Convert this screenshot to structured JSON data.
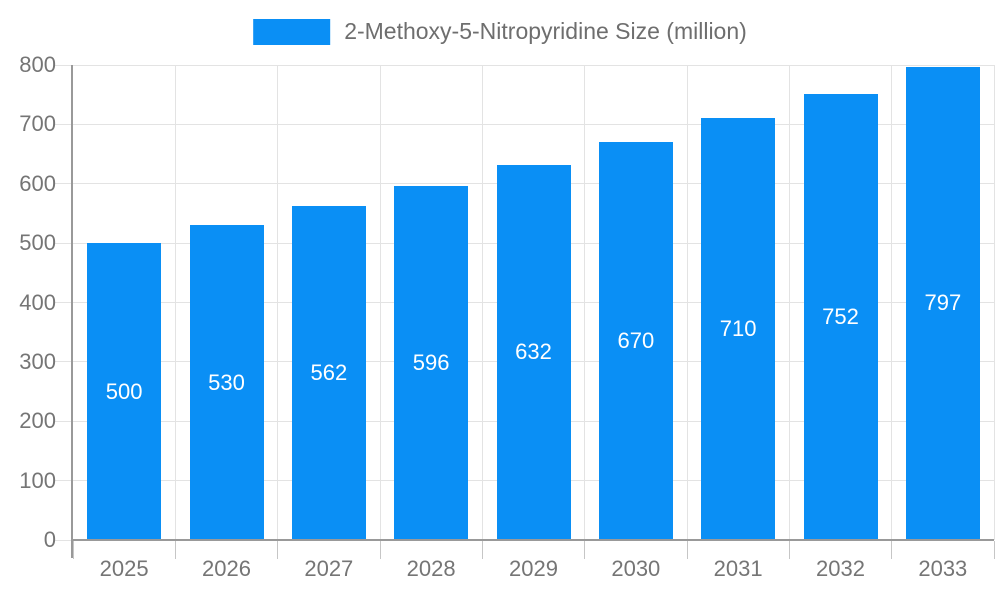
{
  "chart_data": {
    "type": "bar",
    "title": "2-Methoxy-5-Nitropyridine Size (million)",
    "categories": [
      "2025",
      "2026",
      "2027",
      "2028",
      "2029",
      "2030",
      "2031",
      "2032",
      "2033"
    ],
    "values": [
      500,
      530,
      562,
      596,
      632,
      670,
      710,
      752,
      797
    ],
    "xlabel": "",
    "ylabel": "",
    "ylim": [
      0,
      800
    ],
    "yticks": [
      0,
      100,
      200,
      300,
      400,
      500,
      600,
      700,
      800
    ],
    "grid": true,
    "vertical_grid": true,
    "legend_position": "top-center",
    "value_labels": "inside-middle",
    "colors": {
      "bar": "#0A8FF5",
      "grid": "#E3E3E3",
      "axis": "#999999",
      "tick": "#C6C6C6",
      "tick_text": "#757575",
      "legend_text": "#6E6E6E",
      "value_text": "#FFFFFF",
      "background": "#FFFFFF"
    }
  }
}
